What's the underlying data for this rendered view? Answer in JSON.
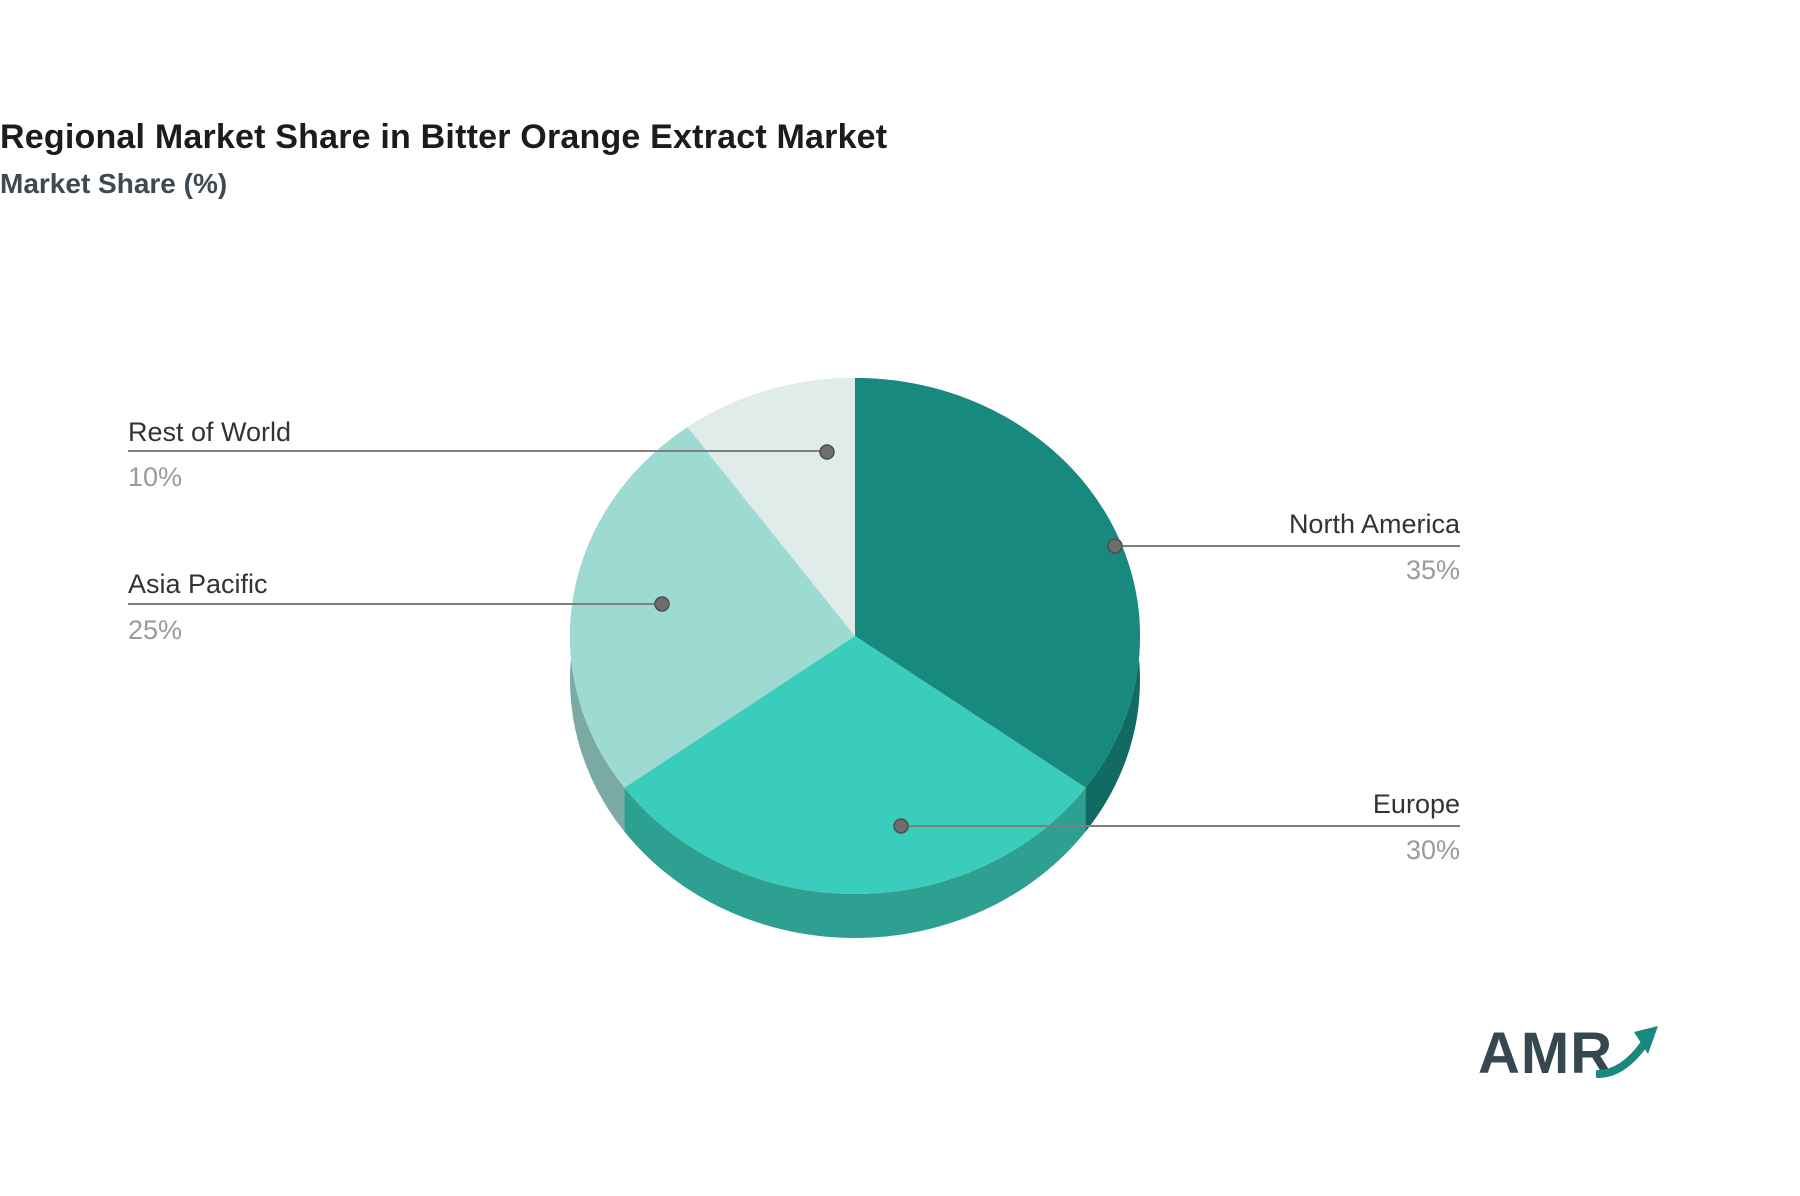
{
  "header": {
    "title": "Regional Market Share in Bitter Orange Extract Market",
    "subtitle": "Market Share (%)"
  },
  "chart_data": {
    "type": "pie",
    "style": "3d",
    "title": "Regional Market Share in Bitter Orange Extract Market",
    "subtitle": "Market Share (%)",
    "unit": "%",
    "start_angle_deg": 0,
    "direction": "clockwise",
    "legend": "none",
    "slices": [
      {
        "label": "North America",
        "value": 35,
        "display_value": "35%",
        "color": "#17897E",
        "callout_side": "right"
      },
      {
        "label": "Europe",
        "value": 30,
        "display_value": "30%",
        "color": "#3BCDBB",
        "callout_side": "right"
      },
      {
        "label": "Asia Pacific",
        "value": 25,
        "display_value": "25%",
        "color": "#9DDAD1",
        "callout_side": "left"
      },
      {
        "label": "Rest of World",
        "value": 10,
        "display_value": "10%",
        "color": "#DFECE9",
        "callout_side": "left"
      }
    ],
    "label_color": "#333333",
    "value_color": "#9A9A9A",
    "leader_line_color": "#7F7F7F"
  },
  "logo": {
    "text": "AMR",
    "color": "#36474F",
    "arrow_color": "#17897E"
  }
}
